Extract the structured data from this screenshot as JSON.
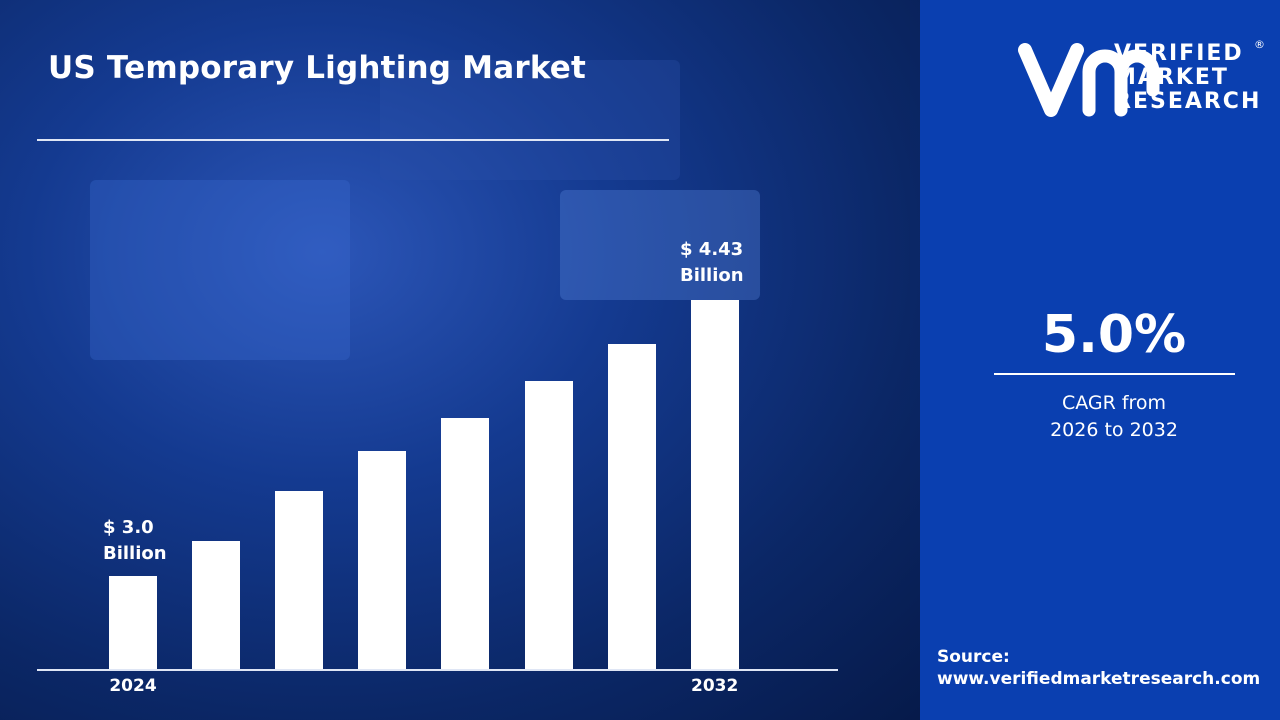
{
  "title": "US Temporary Lighting Market",
  "logo": {
    "line1": "VERIFIED",
    "line2": "MARKET",
    "line3": "RESEARCH",
    "registered": "®"
  },
  "cagr": {
    "value": "5.0%",
    "label_line1": "CAGR from",
    "label_line2": "2026 to 2032"
  },
  "source": {
    "label": "Source:",
    "url": "www.verifiedmarketresearch.com"
  },
  "colors": {
    "bar": "#ffffff",
    "panel": "#0a3fb0",
    "background": "#0b2766"
  },
  "chart_data": {
    "type": "bar",
    "title": "US Temporary Lighting Market",
    "categories": [
      "2024",
      "",
      "",
      "",
      "",
      "",
      "",
      "2032"
    ],
    "values": [
      3.0,
      3.18,
      3.44,
      3.65,
      3.82,
      4.01,
      4.2,
      4.43
    ],
    "unit": "USD Billion",
    "data_labels": [
      {
        "index": 0,
        "line1": "$ 3.0",
        "line2": "Billion"
      },
      {
        "index": 7,
        "line1": "$ 4.43",
        "line2": "Billion"
      }
    ],
    "grid": false,
    "legend": "none"
  }
}
